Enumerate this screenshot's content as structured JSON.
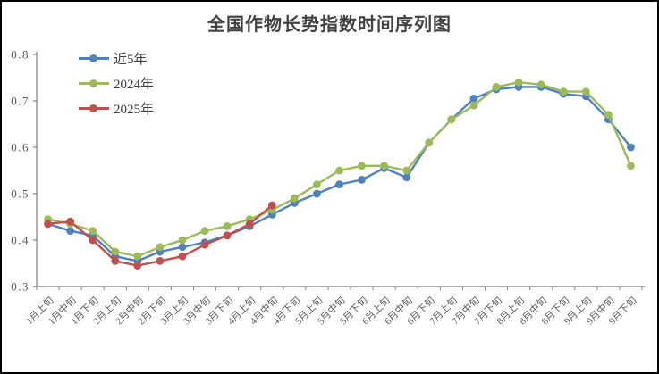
{
  "window": {
    "title": "全国作物长势指数时间序列图"
  },
  "chart_data": {
    "type": "line",
    "title": "全国作物长势指数时间序列图",
    "categories": [
      "1月上旬",
      "1月中旬",
      "1月下旬",
      "2月上旬",
      "2月中旬",
      "2月下旬",
      "3月上旬",
      "3月中旬",
      "3月下旬",
      "4月上旬",
      "4月中旬",
      "4月下旬",
      "5月上旬",
      "5月中旬",
      "5月下旬",
      "6月上旬",
      "6月中旬",
      "6月下旬",
      "7月上旬",
      "7月中旬",
      "7月下旬",
      "8月上旬",
      "8月中旬",
      "8月下旬",
      "9月上旬",
      "9月中旬",
      "9月下旬"
    ],
    "series": [
      {
        "name": "近5年",
        "color": "#4F81BD",
        "values": [
          0.435,
          0.42,
          0.41,
          0.365,
          0.355,
          0.375,
          0.385,
          0.395,
          0.41,
          0.43,
          0.455,
          0.48,
          0.5,
          0.52,
          0.53,
          0.555,
          0.535,
          0.61,
          0.66,
          0.705,
          0.725,
          0.73,
          0.73,
          0.715,
          0.71,
          0.66,
          0.6
        ]
      },
      {
        "name": "2024年",
        "color": "#9BBB59",
        "values": [
          0.445,
          0.435,
          0.42,
          0.375,
          0.365,
          0.385,
          0.4,
          0.42,
          0.43,
          0.445,
          0.465,
          0.49,
          0.52,
          0.55,
          0.56,
          0.56,
          0.55,
          0.61,
          0.66,
          0.69,
          0.73,
          0.74,
          0.735,
          0.72,
          0.72,
          0.67,
          0.56
        ]
      },
      {
        "name": "2025年",
        "color": "#C0504D",
        "values": [
          0.435,
          0.44,
          0.4,
          0.355,
          0.345,
          0.355,
          0.365,
          0.39,
          0.41,
          0.435,
          0.475
        ]
      }
    ],
    "ylim": [
      0.3,
      0.8
    ],
    "ytick_step": 0.1,
    "ytick_labels": [
      "0.3",
      "0.4",
      "0.5",
      "0.6",
      "0.7",
      "0.8"
    ],
    "grid": false,
    "legend_position": "top-left",
    "axis_color": "#808080"
  }
}
